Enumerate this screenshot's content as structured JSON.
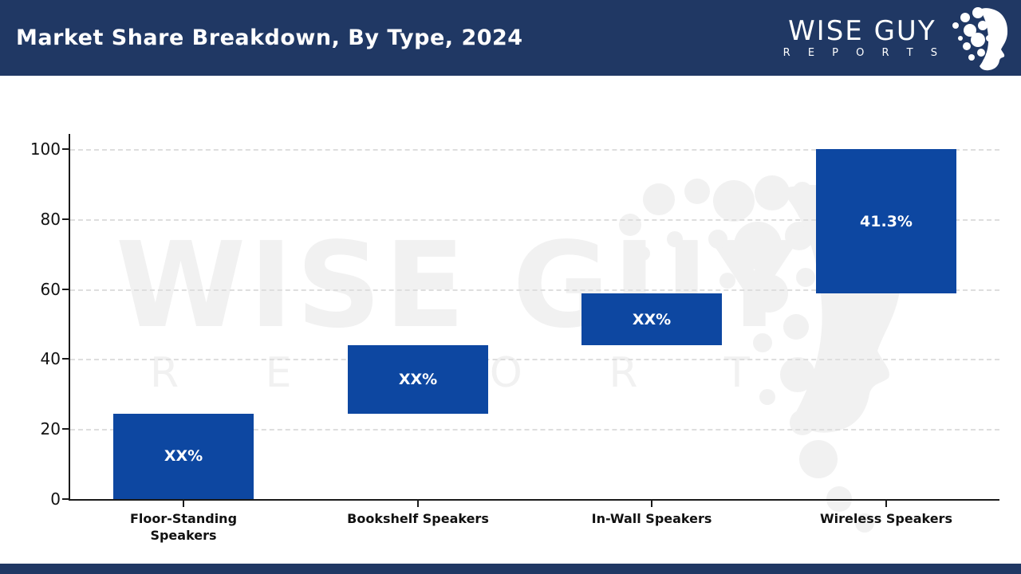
{
  "header": {
    "title": "Market Share Breakdown, By Type, 2024",
    "bg_color": "#203864"
  },
  "logo": {
    "name_line": "WISE GUY",
    "reports_line": "R E P O R T S"
  },
  "watermark": {
    "name_line": "WISE GUY",
    "reports_line": "R E P O R T S"
  },
  "chart_data": {
    "type": "bar",
    "subtype": "waterfall",
    "title": "Market Share Breakdown, By Type, 2024",
    "categories": [
      "Floor-Standing Speakers",
      "Bookshelf Speakers",
      "In-Wall Speakers",
      "Wireless Speakers"
    ],
    "segments": [
      {
        "category": "Floor-Standing Speakers",
        "start": 0,
        "end": 24.4,
        "label": "XX%"
      },
      {
        "category": "Bookshelf Speakers",
        "start": 24.4,
        "end": 44.0,
        "label": "XX%"
      },
      {
        "category": "In-Wall Speakers",
        "start": 44.0,
        "end": 58.7,
        "label": "XX%"
      },
      {
        "category": "Wireless Speakers",
        "start": 58.7,
        "end": 100,
        "label": "41.3%",
        "value": 41.3
      }
    ],
    "xlabel": "",
    "ylabel": "",
    "ylim": [
      0,
      100
    ],
    "yticks": [
      0,
      20,
      40,
      60,
      80,
      100
    ],
    "grid": "horizontal-dashed",
    "legend": "none",
    "bar_color": "#0d47a1",
    "bar_label_color": "#ffffff"
  }
}
